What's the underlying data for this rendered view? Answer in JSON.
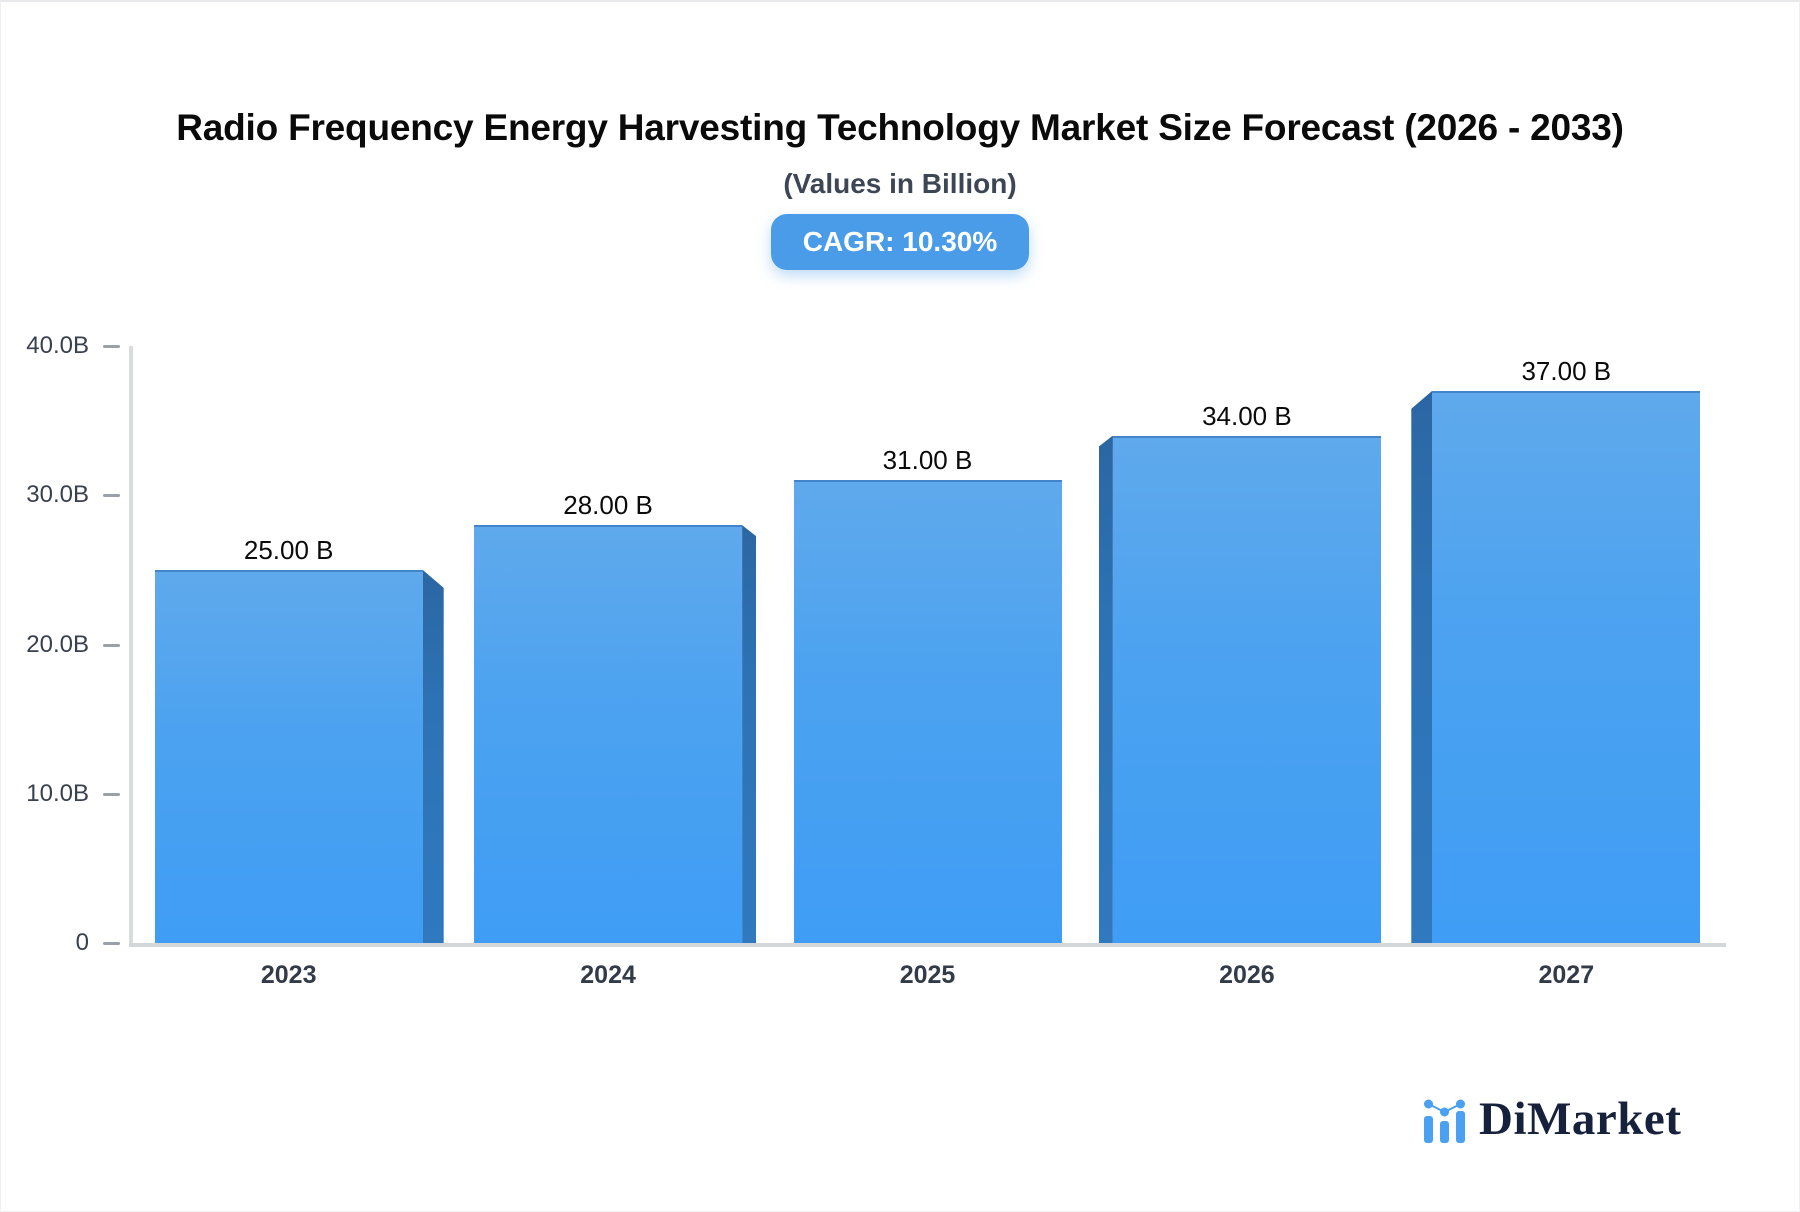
{
  "header": {
    "title": "Radio Frequency Energy Harvesting Technology Market Size Forecast (2026 - 2033)",
    "subtitle": "(Values in Billion)",
    "cagr_badge": "CAGR: 10.30%"
  },
  "chart_data": {
    "type": "bar",
    "style": "3d-perspective-bars",
    "title": "Radio Frequency Energy Harvesting Technology Market Size Forecast (2026 - 2033)",
    "subtitle": "(Values in Billion)",
    "cagr_percent": 10.3,
    "unit": "Billion",
    "categories": [
      "2023",
      "2024",
      "2025",
      "2026",
      "2027"
    ],
    "values": [
      25,
      28,
      31,
      34,
      37
    ],
    "bar_labels": [
      "25.00 B",
      "28.00 B",
      "31.00 B",
      "34.00 B",
      "37.00 B"
    ],
    "yticks": [
      {
        "label": "40.0B",
        "value": 40
      },
      {
        "label": "30.0B",
        "value": 30
      },
      {
        "label": "20.0B",
        "value": 20
      },
      {
        "label": "10.0B",
        "value": 10
      },
      {
        "label": "0",
        "value": 0
      }
    ],
    "ylim": [
      0,
      40
    ],
    "xlabel": "",
    "ylabel": "",
    "grid": false,
    "legend": false,
    "colors": {
      "bar_face_top": "#5fa9ec",
      "bar_face_bottom": "#3f9df5",
      "bar_side": "#2d72b4",
      "badge_bg": "#4a9ce9",
      "badge_text": "#ffffff",
      "axis": "#d9dbdf",
      "tick": "#9aa0a8",
      "label_text": "#333b49"
    }
  },
  "branding": {
    "logo_text": "DiMarket",
    "logo_icon": "mini-bar-chart-icon",
    "logo_text_color": "#16223c",
    "logo_icon_color": "#4aa0f2"
  }
}
